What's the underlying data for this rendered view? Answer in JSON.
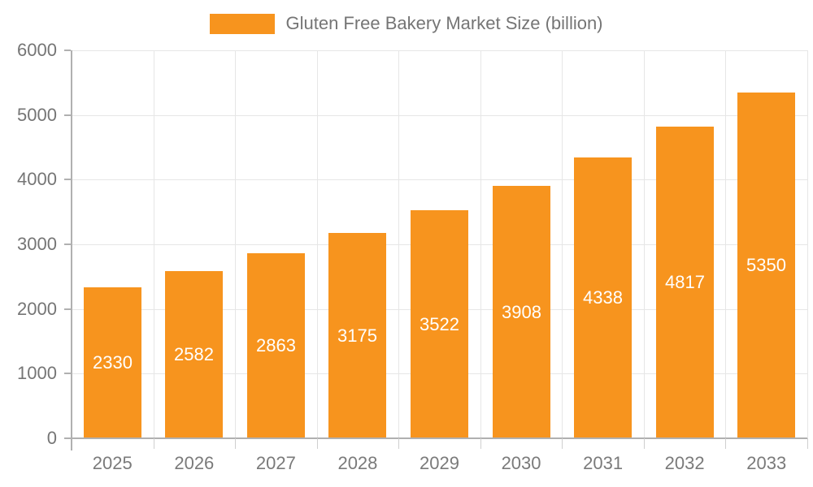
{
  "legend": {
    "label": "Gluten Free Bakery Market Size (billion)",
    "swatch_color": "#f7941e"
  },
  "chart_data": {
    "type": "bar",
    "title": "Gluten Free Bakery Market Size (billion)",
    "series_name": "Gluten Free Bakery Market Size (billion)",
    "categories": [
      "2025",
      "2026",
      "2027",
      "2028",
      "2029",
      "2030",
      "2031",
      "2032",
      "2033"
    ],
    "values": [
      2330,
      2582,
      2863,
      3175,
      3522,
      3908,
      4338,
      4817,
      5350
    ],
    "value_labels": [
      "2330",
      "2582",
      "2863",
      "3175",
      "3522",
      "3908",
      "4338",
      "4817",
      "5350"
    ],
    "xlabel": "",
    "ylabel": "",
    "ylim": [
      0,
      6000
    ],
    "yticks": [
      0,
      1000,
      2000,
      3000,
      4000,
      5000,
      6000
    ],
    "grid": true,
    "legend_position": "top",
    "bar_color": "#f7941e",
    "value_label_color": "#ffffff",
    "axis_color": "#b0b0b0",
    "grid_color": "#e6e6e6",
    "tick_text_color": "#757575"
  }
}
